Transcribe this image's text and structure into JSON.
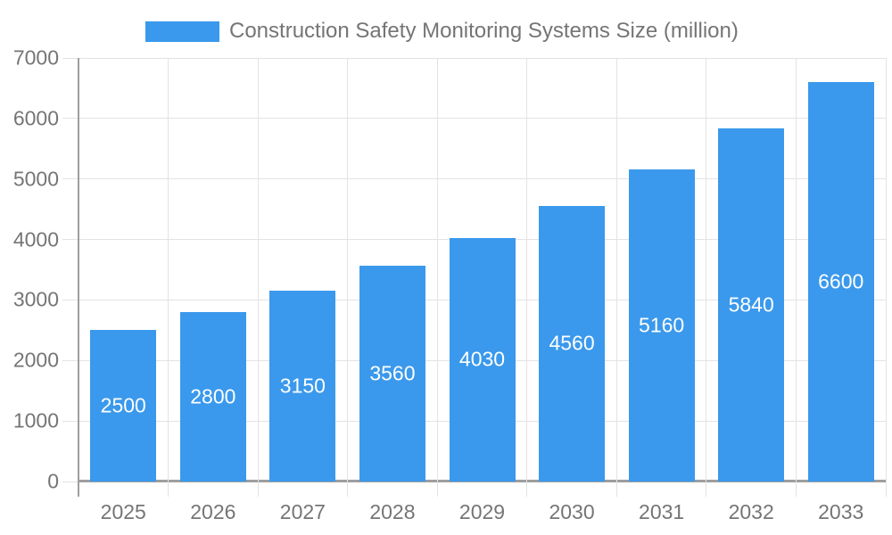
{
  "legend": {
    "label": "Construction Safety Monitoring Systems Size (million)"
  },
  "chart_data": {
    "type": "bar",
    "title": "Construction Safety Monitoring Systems Size (million)",
    "xlabel": "",
    "ylabel": "",
    "categories": [
      "2025",
      "2026",
      "2027",
      "2028",
      "2029",
      "2030",
      "2031",
      "2032",
      "2033"
    ],
    "values": [
      2500,
      2800,
      3150,
      3560,
      4030,
      4560,
      5160,
      5840,
      6600
    ],
    "bar_labels": [
      "2500",
      "2800",
      "3150",
      "3560",
      "4030",
      "4560",
      "5160",
      "5840",
      "6600"
    ],
    "ylim": [
      0,
      7000
    ],
    "yticks": [
      0,
      1000,
      2000,
      3000,
      4000,
      5000,
      6000,
      7000
    ],
    "grid": true,
    "legend_position": "top",
    "colors": {
      "bar": "#3a99ec",
      "bar_label": "#ffffff",
      "axis_text": "#757575",
      "gridline": "#e3e3e3",
      "axis_line": "#9e9e9e",
      "background": "#ffffff"
    }
  }
}
